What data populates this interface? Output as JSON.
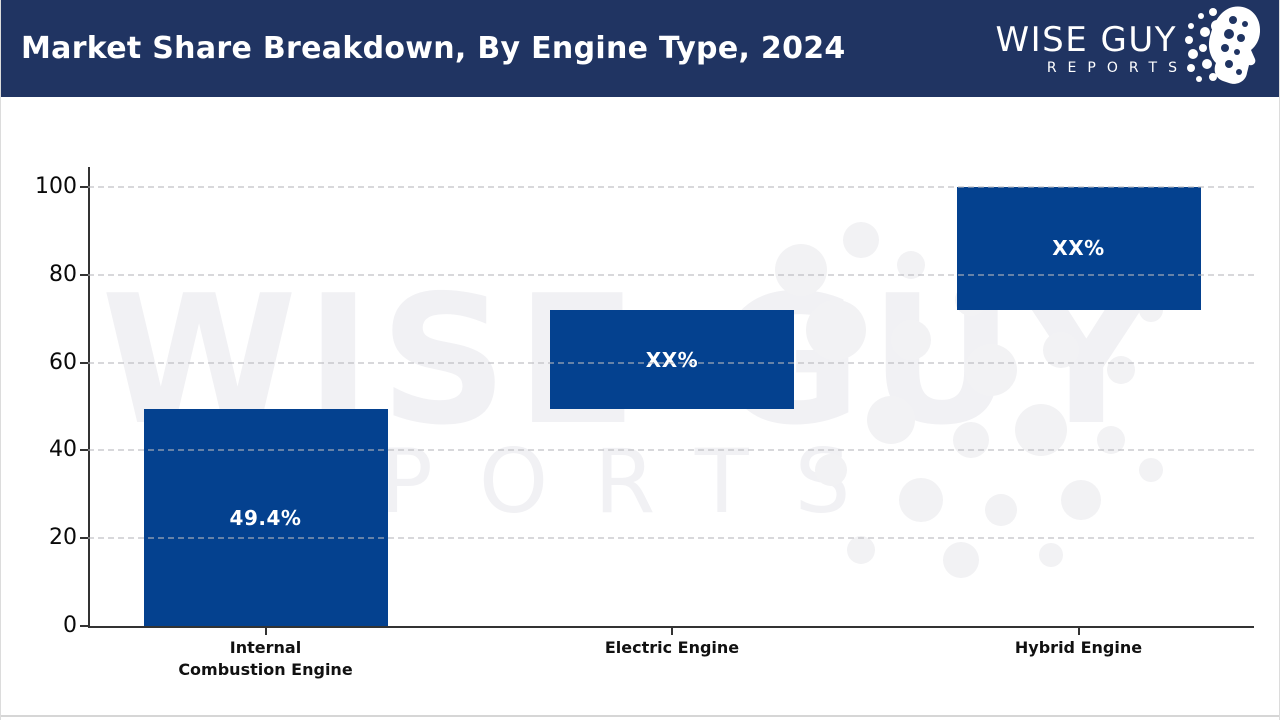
{
  "header": {
    "title": "Market Share Breakdown, By Engine Type, 2024",
    "logo": {
      "top": "WISE GUY",
      "bottom": "REPORTS"
    }
  },
  "watermark": {
    "line1": "WISE GUY",
    "line2": "REPORTS"
  },
  "chart_data": {
    "type": "bar",
    "variant": "waterfall",
    "title": "Market Share Breakdown, By Engine Type, 2024",
    "categories": [
      "Internal Combustion Engine",
      "Electric Engine",
      "Hybrid Engine"
    ],
    "category_label_lines": [
      [
        "Internal",
        "Combustion Engine"
      ],
      [
        "Electric Engine"
      ],
      [
        "Hybrid Engine"
      ]
    ],
    "bars": [
      {
        "category": "Internal Combustion Engine",
        "start": 0,
        "end": 49.4,
        "label": "49.4%"
      },
      {
        "category": "Electric Engine",
        "start": 49.4,
        "end": 72,
        "label": "XX%"
      },
      {
        "category": "Hybrid Engine",
        "start": 72,
        "end": 100,
        "label": "XX%"
      }
    ],
    "ylim": [
      0,
      100
    ],
    "yticks": [
      0,
      20,
      40,
      60,
      80,
      100
    ],
    "grid": "horizontal-dashed",
    "legend": "none",
    "bar_color": "#04418f",
    "bar_label_color": "#ffffff"
  },
  "colors": {
    "header_bg": "#203462",
    "watermark": "#f1f1f4",
    "axis": "#333333",
    "tick_text": "#0a0a0a",
    "gridline": "#b8b8be"
  }
}
